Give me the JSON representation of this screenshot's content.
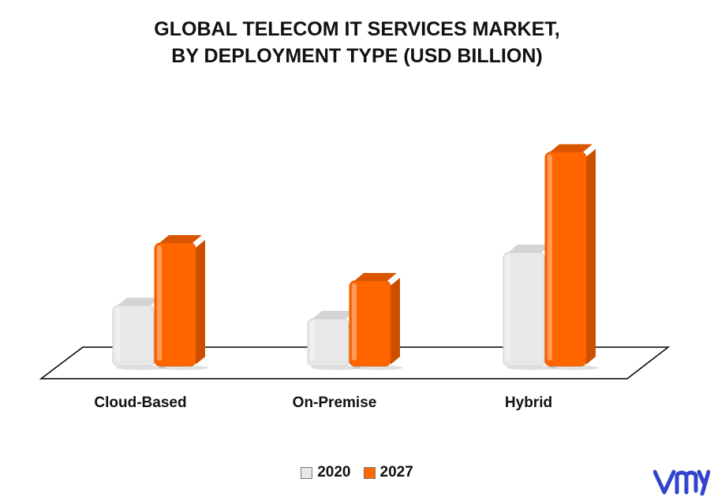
{
  "chart_data": {
    "type": "bar",
    "title_lines": [
      "GLOBAL TELECOM IT SERVICES MARKET,",
      "BY DEPLOYMENT TYPE (USD BILLION)"
    ],
    "categories": [
      "Cloud-Based",
      "On-Premise",
      "Hybrid"
    ],
    "series": [
      {
        "name": "2020",
        "values": [
          3.2,
          2.5,
          6.0
        ],
        "color": "#e8e8e8",
        "side": "#c8c8c8",
        "top": "#d4d4d4"
      },
      {
        "name": "2027",
        "values": [
          6.5,
          4.5,
          11.3
        ],
        "color": "#ff6600",
        "side": "#cc4f00",
        "top": "#d95500"
      }
    ],
    "ylim": [
      0,
      12
    ],
    "grid": false,
    "legend_position": "bottom-center"
  },
  "brand": {
    "logo_color": "#3344cc"
  }
}
